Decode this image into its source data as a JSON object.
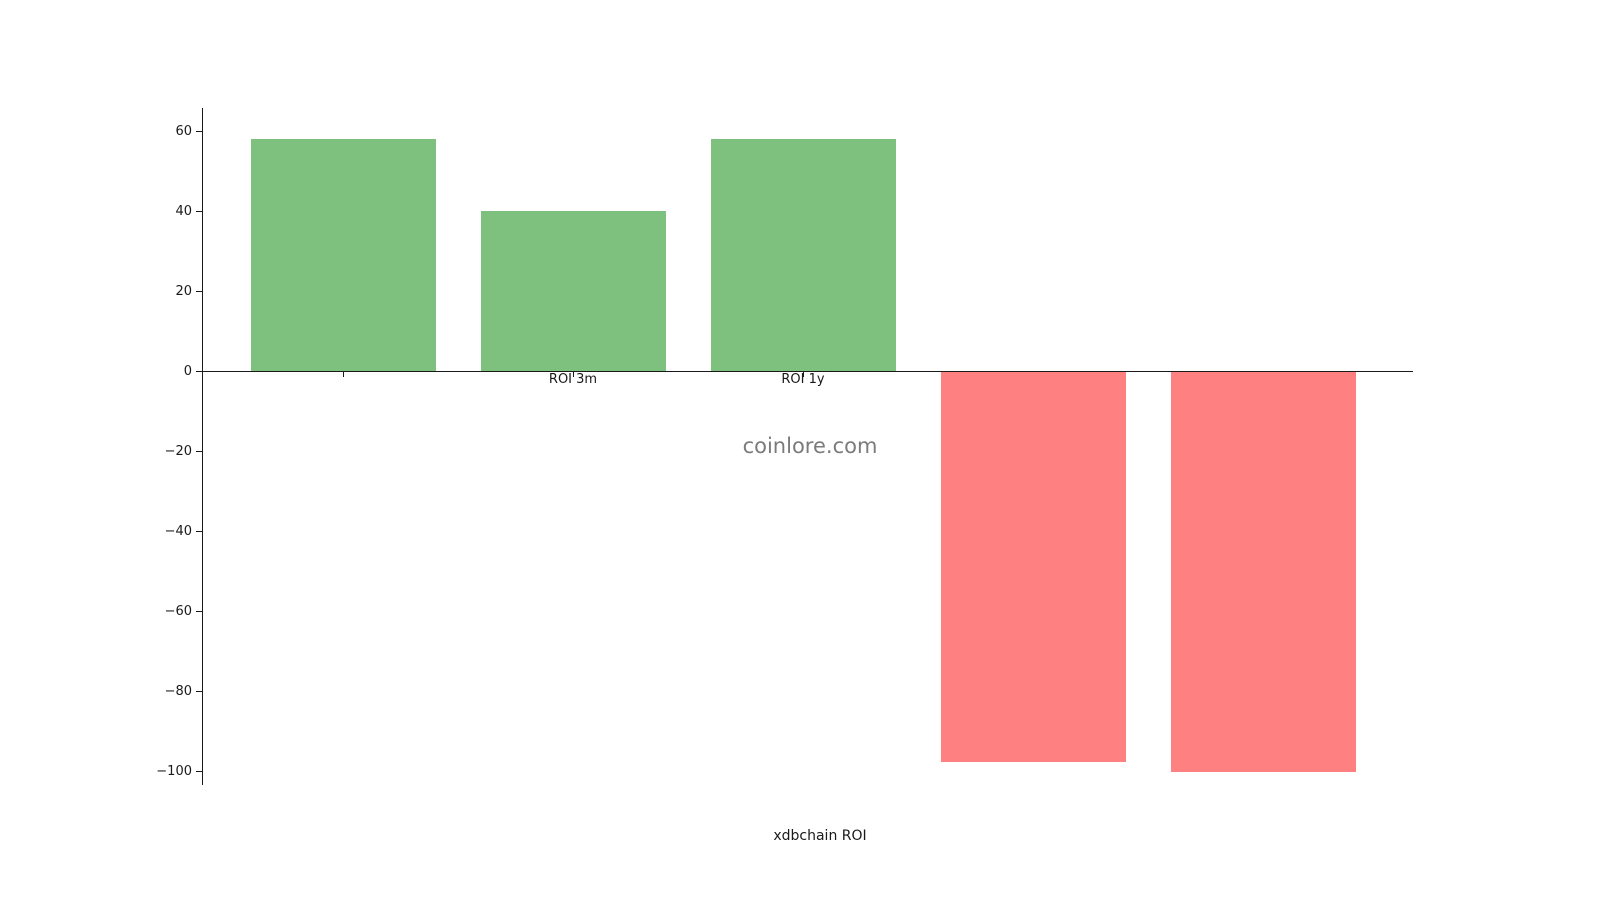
{
  "chart_data": {
    "type": "bar",
    "title": "",
    "xlabel": "xdbchain ROI",
    "ylabel": "",
    "watermark": "coinlore.com",
    "categories": [
      "",
      "ROI 3m",
      "ROI 1y",
      "",
      ""
    ],
    "values": [
      58,
      40,
      58,
      -97.5,
      -100
    ],
    "bar_colors": [
      "#7ec07e",
      "#7ec07e",
      "#7ec07e",
      "#ff8080",
      "#ff8080"
    ],
    "positive_color": "#7ec07e",
    "negative_color": "#ff8080",
    "y_ticks": [
      60,
      40,
      20,
      0,
      -20,
      -40,
      -60,
      -80,
      -100
    ],
    "y_tick_labels": [
      "60",
      "40",
      "20",
      "0",
      "−20",
      "−40",
      "−60",
      "−80",
      "−100"
    ],
    "ylim": [
      -103.5,
      65.75
    ],
    "xlim_categories": 5,
    "grid": false,
    "legend": null,
    "background": "#ffffff",
    "axis_color": "#1a1a1a"
  }
}
